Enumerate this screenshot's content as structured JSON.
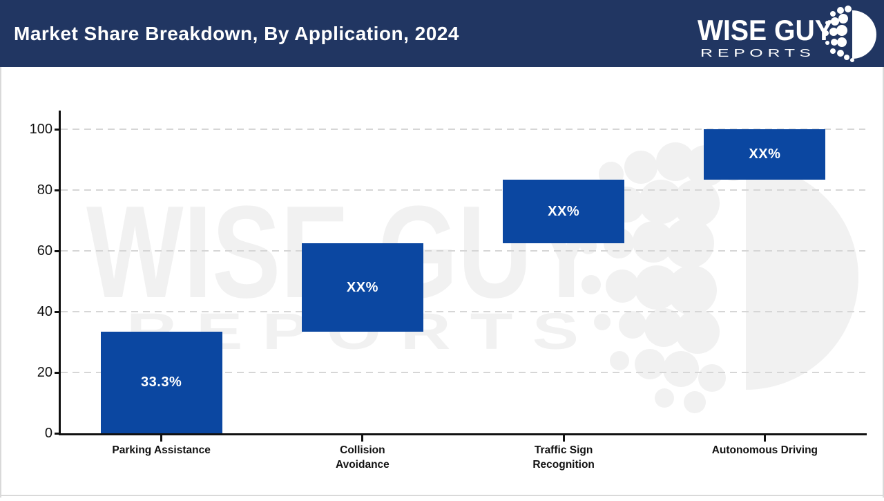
{
  "header": {
    "title": "Market Share Breakdown, By Application, 2024",
    "bg_color": "#213662",
    "logo": {
      "line1": "WISE GUY",
      "line2": "R E P O R T S"
    }
  },
  "watermark": {
    "line1": "WISE GUY",
    "line2": "R E P O R T S",
    "color": "#f1f1f1"
  },
  "chart_data": {
    "type": "bar",
    "subtype": "waterfall-stacked-range",
    "title": "Market Share Breakdown, By Application, 2024",
    "categories": [
      "Parking Assistance",
      "Collision Avoidance",
      "Traffic Sign Recognition",
      "Autonomous Driving"
    ],
    "category_label_lines": [
      [
        "Parking Assistance"
      ],
      [
        "Collision",
        "Avoidance"
      ],
      [
        "Traffic Sign",
        "Recognition"
      ],
      [
        "Autonomous Driving"
      ]
    ],
    "series": [
      {
        "name": "Market Share",
        "segments": [
          {
            "category": "Parking Assistance",
            "start": 0,
            "end": 33.3,
            "label": "33.3%"
          },
          {
            "category": "Collision Avoidance",
            "start": 33.3,
            "end": 62.5,
            "label": "XX%"
          },
          {
            "category": "Traffic Sign Recognition",
            "start": 62.5,
            "end": 83.3,
            "label": "XX%"
          },
          {
            "category": "Autonomous Driving",
            "start": 83.3,
            "end": 100,
            "label": "XX%"
          }
        ]
      }
    ],
    "values_estimated": [
      33.3,
      29.2,
      20.8,
      16.7
    ],
    "bar_color": "#0b47a1",
    "bar_label_color": "#ffffff",
    "xlabel": "",
    "ylabel": "",
    "ylim": [
      0,
      100
    ],
    "yticks": [
      0,
      20,
      40,
      60,
      80,
      100
    ],
    "grid": "horizontal-dashed",
    "gridline_color": "#d6d6d6",
    "legend": "none"
  }
}
